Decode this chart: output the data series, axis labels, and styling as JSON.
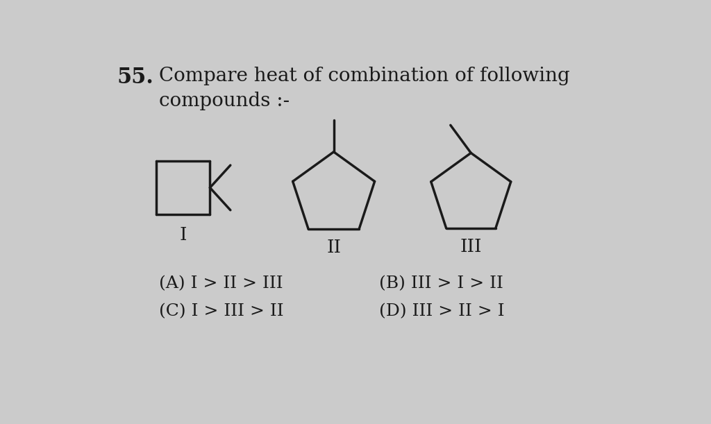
{
  "background_color": "#cbcbcb",
  "question_number": "55.",
  "question_text_line1": "Compare heat of combination of following",
  "question_text_line2": "compounds :-",
  "label_I": "I",
  "label_II": "II",
  "label_III": "III",
  "options_left_A": "(A) I > II > III",
  "options_left_C": "(C) I > III > II",
  "options_right_B": "(B) III > I > II",
  "options_right_D": "(D) III > II > I",
  "text_color": "#1a1a1a",
  "line_color": "#1a1a1a",
  "line_width": 2.5,
  "font_size_question": 20,
  "font_size_number": 22,
  "font_size_label": 19,
  "font_size_options": 18
}
